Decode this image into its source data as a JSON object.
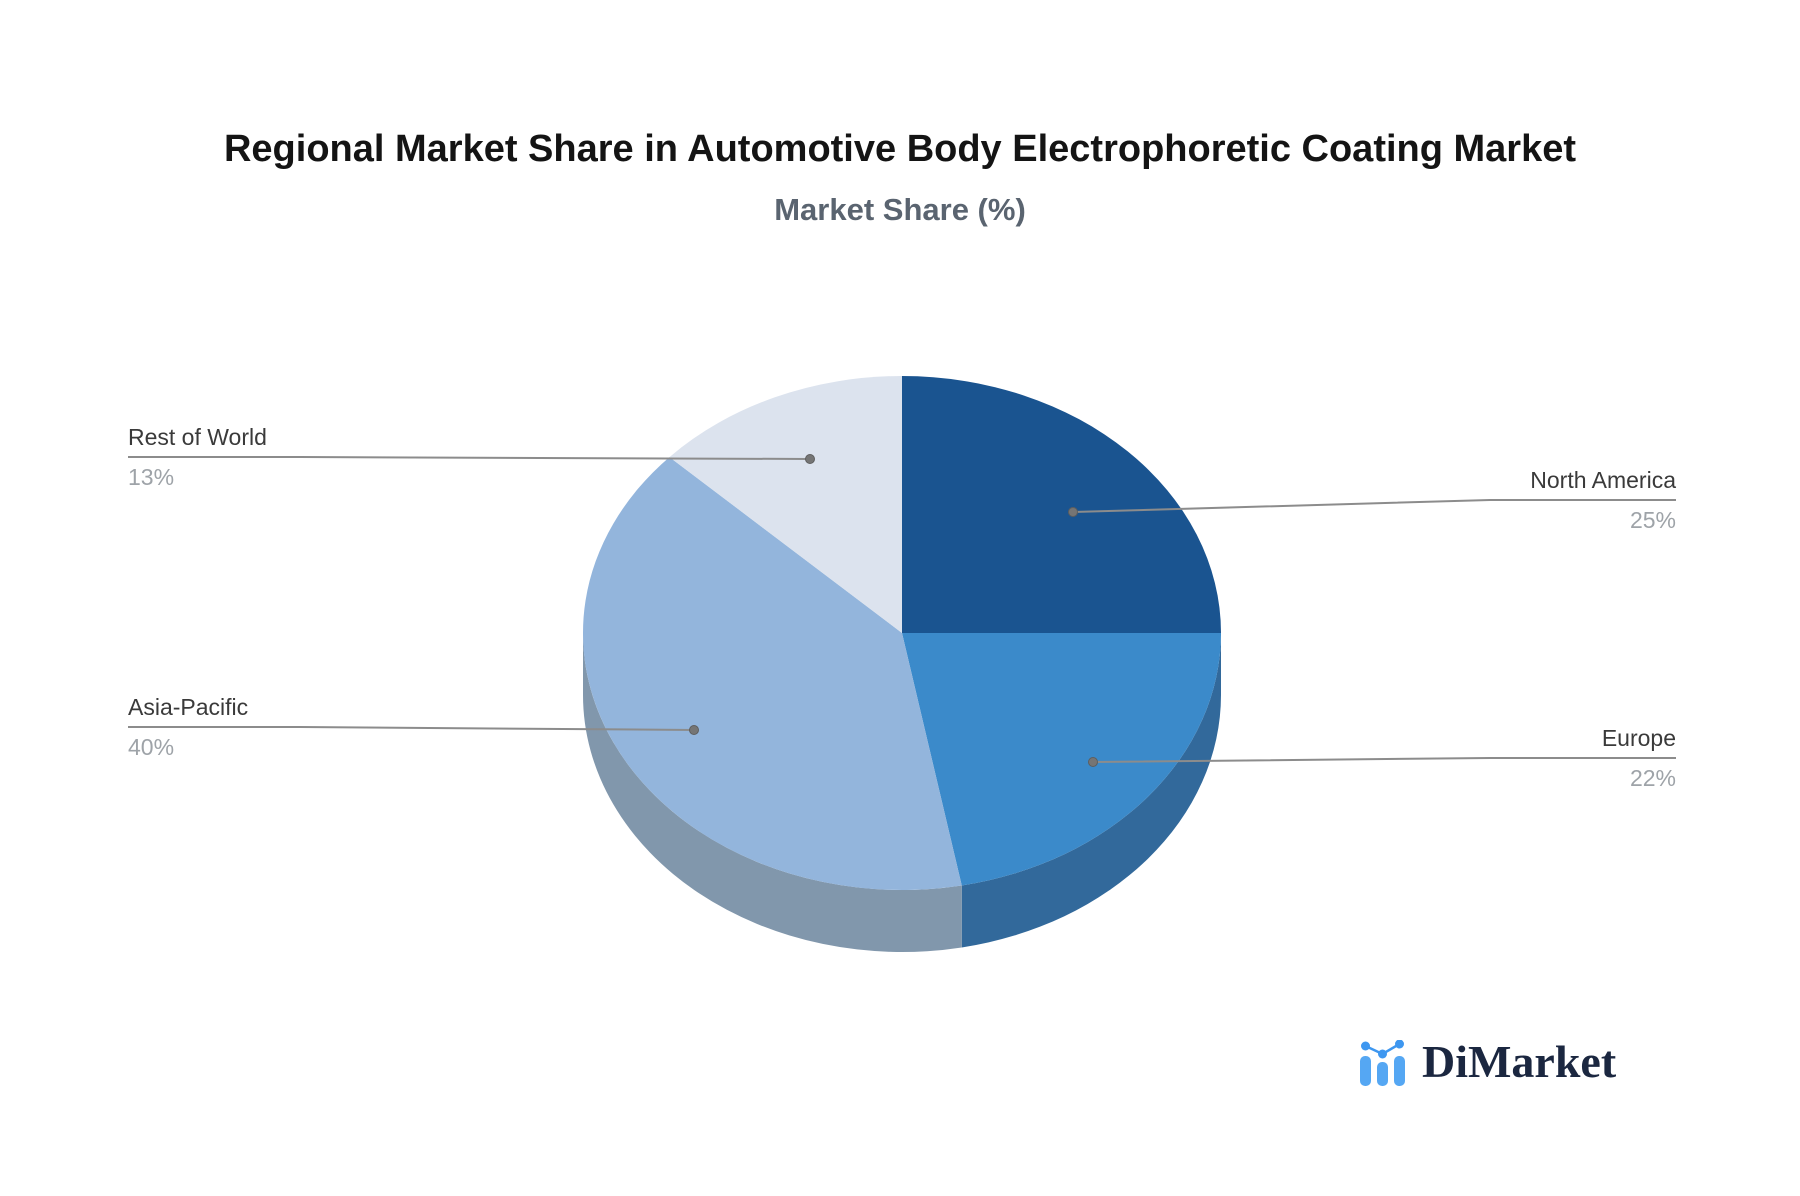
{
  "chart": {
    "title": "Regional Market Share in Automotive Body Electrophoretic Coating Market",
    "subtitle": "Market Share (%)"
  },
  "chart_data": {
    "type": "pie",
    "title": "Regional Market Share in Automotive Body Electrophoretic Coating Market",
    "subtitle": "Market Share (%)",
    "unit": "%",
    "style": "3d",
    "start_position": "12-oclock-clockwise",
    "slices": [
      {
        "label": "North America",
        "value": 25,
        "pct_label": "25%",
        "color": "#1A5490",
        "wall_color": "#14446F",
        "label_side": "right"
      },
      {
        "label": "Europe",
        "value": 22,
        "pct_label": "22%",
        "color": "#3B8ACA",
        "wall_color": "#32699B",
        "label_side": "right"
      },
      {
        "label": "Asia-Pacific",
        "value": 40,
        "pct_label": "40%",
        "color": "#93B5DC",
        "wall_color": "#8197AC",
        "label_side": "left"
      },
      {
        "label": "Rest of World",
        "value": 13,
        "pct_label": "13%",
        "color": "#DCE3EE",
        "wall_color": "#AEB6C4",
        "label_side": "left"
      }
    ],
    "leader_line_color": "#8C8C8C",
    "label_text_color": "#3A3A3A",
    "percent_text_color": "#9EA3A8"
  },
  "branding": {
    "logo_text": "DiMarket",
    "logo_icon": "bar-and-line-chart-icon",
    "logo_text_color": "#1B2740",
    "logo_icon_color": "#55A7F3"
  }
}
